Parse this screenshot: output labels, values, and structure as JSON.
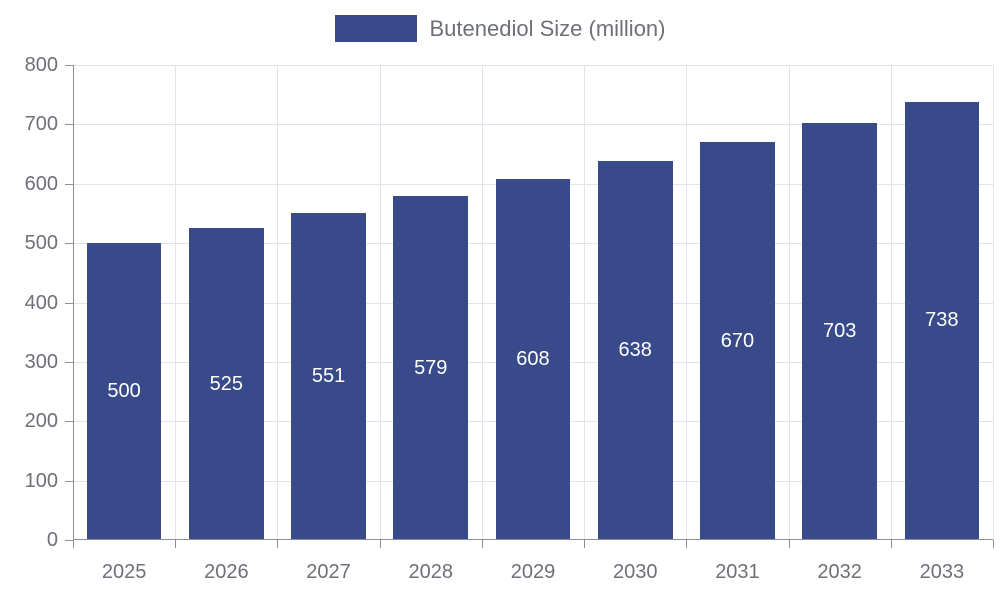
{
  "legend": {
    "label": "Butenediol Size (million)",
    "swatch_color": "#394A8A"
  },
  "chart_data": {
    "type": "bar",
    "title": "",
    "categories": [
      "2025",
      "2026",
      "2027",
      "2028",
      "2029",
      "2030",
      "2031",
      "2032",
      "2033"
    ],
    "series": [
      {
        "name": "Butenediol Size (million)",
        "values": [
          500,
          525,
          551,
          579,
          608,
          638,
          670,
          703,
          738
        ]
      }
    ],
    "value_labels": [
      "500",
      "525",
      "551",
      "579",
      "608",
      "638",
      "670",
      "703",
      "738"
    ],
    "ytick_labels": [
      "0",
      "100",
      "200",
      "300",
      "400",
      "500",
      "600",
      "700",
      "800"
    ],
    "xlabel": "",
    "ylabel": "",
    "ylim": [
      0,
      800
    ],
    "ytick_step": 100,
    "grid": "horizontal and vertical gridlines on",
    "legend_position": "top-center",
    "bar_color": "#394A8A",
    "value_label_color": "#FFFFFF",
    "axis_color": "#8A8F99",
    "grid_color": "#E2E4EB",
    "tick_label_color": "#6E7079"
  }
}
